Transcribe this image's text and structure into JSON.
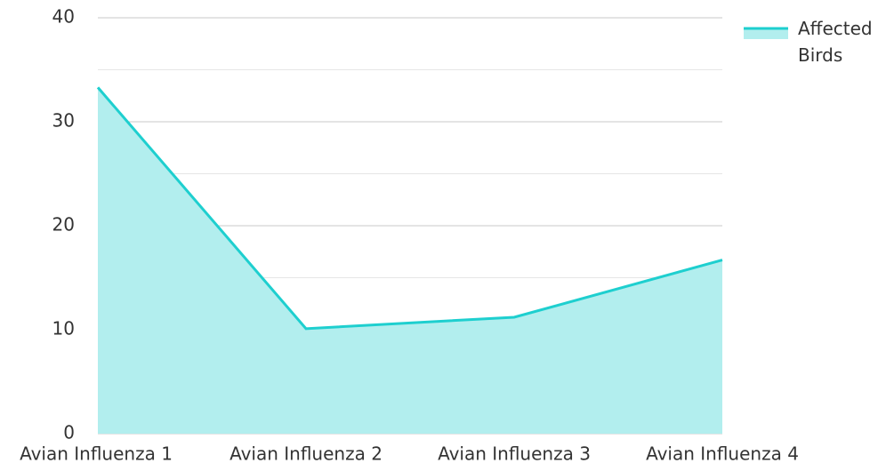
{
  "chart_data": {
    "type": "area",
    "categories": [
      "Avian Influenza 1",
      "Avian Influenza 2",
      "Avian Influenza 3",
      "Avian Influenza 4"
    ],
    "series": [
      {
        "name": "Affected Birds",
        "color": "#1ecfcf",
        "fill": "#b2eeee",
        "values": [
          33.3,
          10.1,
          11.2,
          16.7
        ]
      }
    ],
    "ylim": [
      0,
      40
    ],
    "yticks": [
      0,
      10,
      20,
      30,
      40
    ],
    "minor_yticks": [
      5,
      15,
      25,
      35
    ],
    "grid": true,
    "legend": "top-right"
  }
}
